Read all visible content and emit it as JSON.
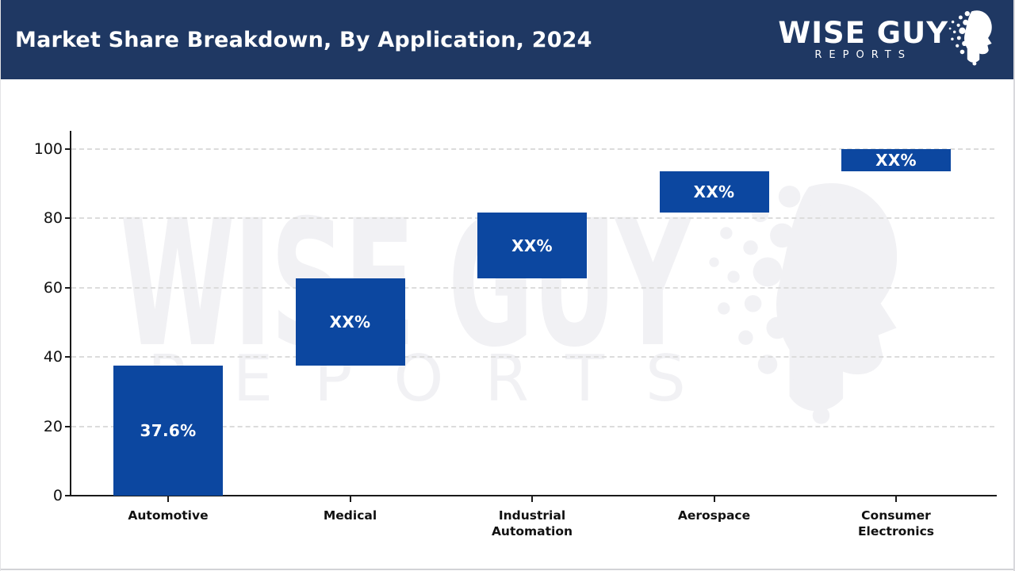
{
  "header": {
    "title": "Market Share Breakdown, By Application, 2024",
    "brand": {
      "line1": "WISE GUY",
      "line2": "REPORTS"
    }
  },
  "watermark": {
    "line1": "WISE GUY",
    "line2": "REPORTS"
  },
  "chart_data": {
    "type": "bar",
    "subtype": "waterfall",
    "title": "Market Share Breakdown, By Application, 2024",
    "categories": [
      "Automotive",
      "Medical",
      "Industrial\nAutomation",
      "Aerospace",
      "Consumer\nElectronics"
    ],
    "segments": [
      {
        "category": "Automotive",
        "start": 0,
        "end": 37.6,
        "label": "37.6%"
      },
      {
        "category": "Medical",
        "start": 37.6,
        "end": 62.6,
        "label": "XX%"
      },
      {
        "category": "Industrial Automation",
        "start": 62.6,
        "end": 81.6,
        "label": "XX%"
      },
      {
        "category": "Aerospace",
        "start": 81.6,
        "end": 93.6,
        "label": "XX%"
      },
      {
        "category": "Consumer Electronics",
        "start": 93.6,
        "end": 100,
        "label": "XX%"
      }
    ],
    "yticks": [
      0,
      20,
      40,
      60,
      80,
      100
    ],
    "ylim": [
      0,
      105
    ],
    "xlabel": "",
    "ylabel": "",
    "grid": "horizontal-dashed",
    "legend": "none",
    "bar_color": "#0c47a0",
    "bar_label_color": "#ffffff"
  }
}
